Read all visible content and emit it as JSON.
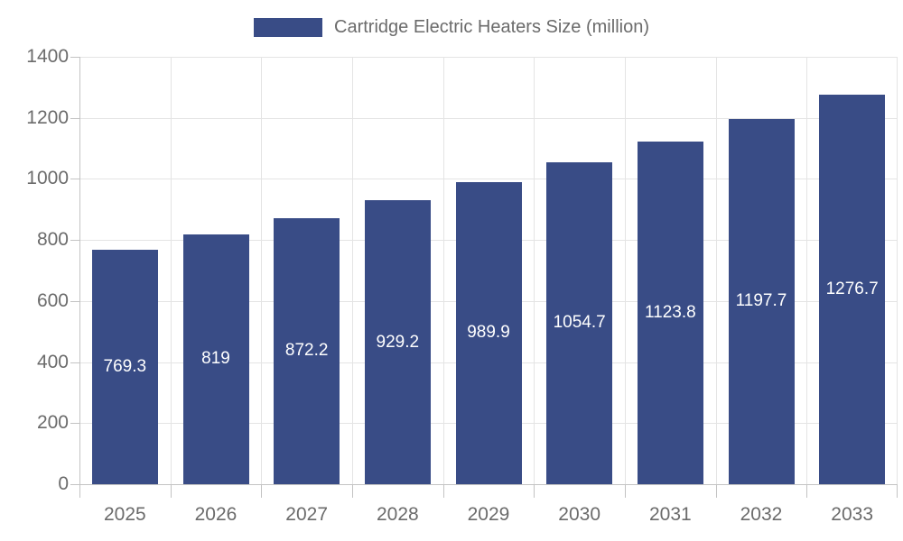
{
  "chart_data": {
    "type": "bar",
    "title": "Cartridge Electric Heaters Size (million)",
    "categories": [
      "2025",
      "2026",
      "2027",
      "2028",
      "2029",
      "2030",
      "2031",
      "2032",
      "2033"
    ],
    "values": [
      769.3,
      819,
      872.2,
      929.2,
      989.9,
      1054.7,
      1123.8,
      1197.7,
      1276.7
    ],
    "value_labels": [
      "769.3",
      "819",
      "872.2",
      "929.2",
      "989.9",
      "1054.7",
      "1123.8",
      "1197.7",
      "1276.7"
    ],
    "xlabel": "",
    "ylabel": "",
    "ylim": [
      0,
      1400
    ],
    "ytick_step": 200,
    "grid": true,
    "legend_position": "top",
    "colors": {
      "bar": "#394C86",
      "value_label": "#ffffff",
      "grid": "#e4e4e4",
      "axis": "#c3c3c3",
      "tick_label": "#6b6b6b",
      "legend_label": "#6b6b6b"
    }
  }
}
